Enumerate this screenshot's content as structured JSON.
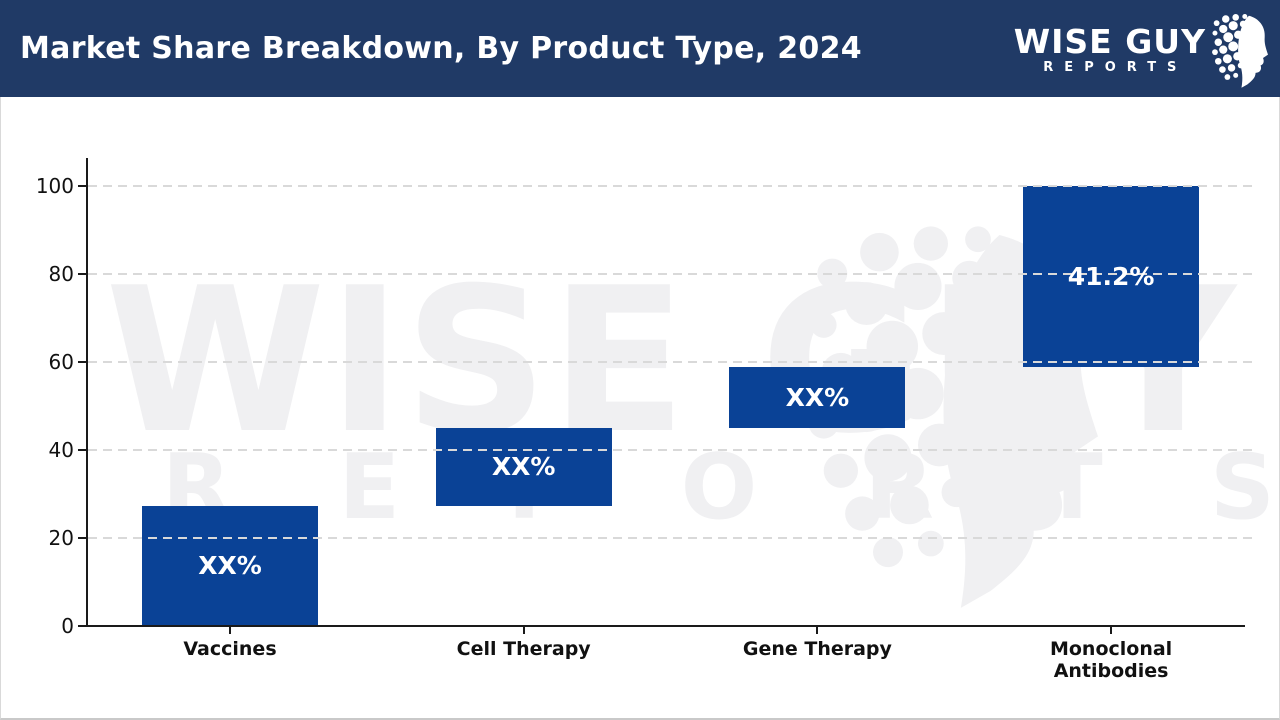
{
  "header": {
    "title": "Market Share Breakdown, By Product Type, 2024",
    "logo_line1": "WISE GUY",
    "logo_line2": "REPORTS",
    "bg_color": "#203a66"
  },
  "watermark": {
    "line1": "WISE GUY",
    "line2": "R E P O R T S"
  },
  "chart_data": {
    "type": "bar",
    "subtype": "waterfall",
    "title": "Market Share Breakdown, By Product Type, 2024",
    "categories": [
      "Vaccines",
      "Cell Therapy",
      "Gene Therapy",
      "Monoclonal Antibodies"
    ],
    "segments": [
      {
        "category": "Vaccines",
        "start": 0,
        "end": 27.3,
        "label": "XX%"
      },
      {
        "category": "Cell Therapy",
        "start": 27.3,
        "end": 45,
        "label": "XX%"
      },
      {
        "category": "Gene Therapy",
        "start": 45,
        "end": 58.8,
        "label": "XX%"
      },
      {
        "category": "Monoclonal Antibodies",
        "start": 58.8,
        "end": 100,
        "label": "41.2%"
      }
    ],
    "yticks": [
      0,
      20,
      40,
      60,
      80,
      100
    ],
    "ylim": [
      0,
      100
    ],
    "grid": "horizontal-dashed",
    "legend": null,
    "xlabel": "",
    "ylabel": "",
    "bar_color": "#0a4296",
    "bar_label_color": "#ffffff",
    "axis_color": "#1a1a1a",
    "grid_color": "#d9d9d9",
    "tick_label_color": "#111111"
  }
}
